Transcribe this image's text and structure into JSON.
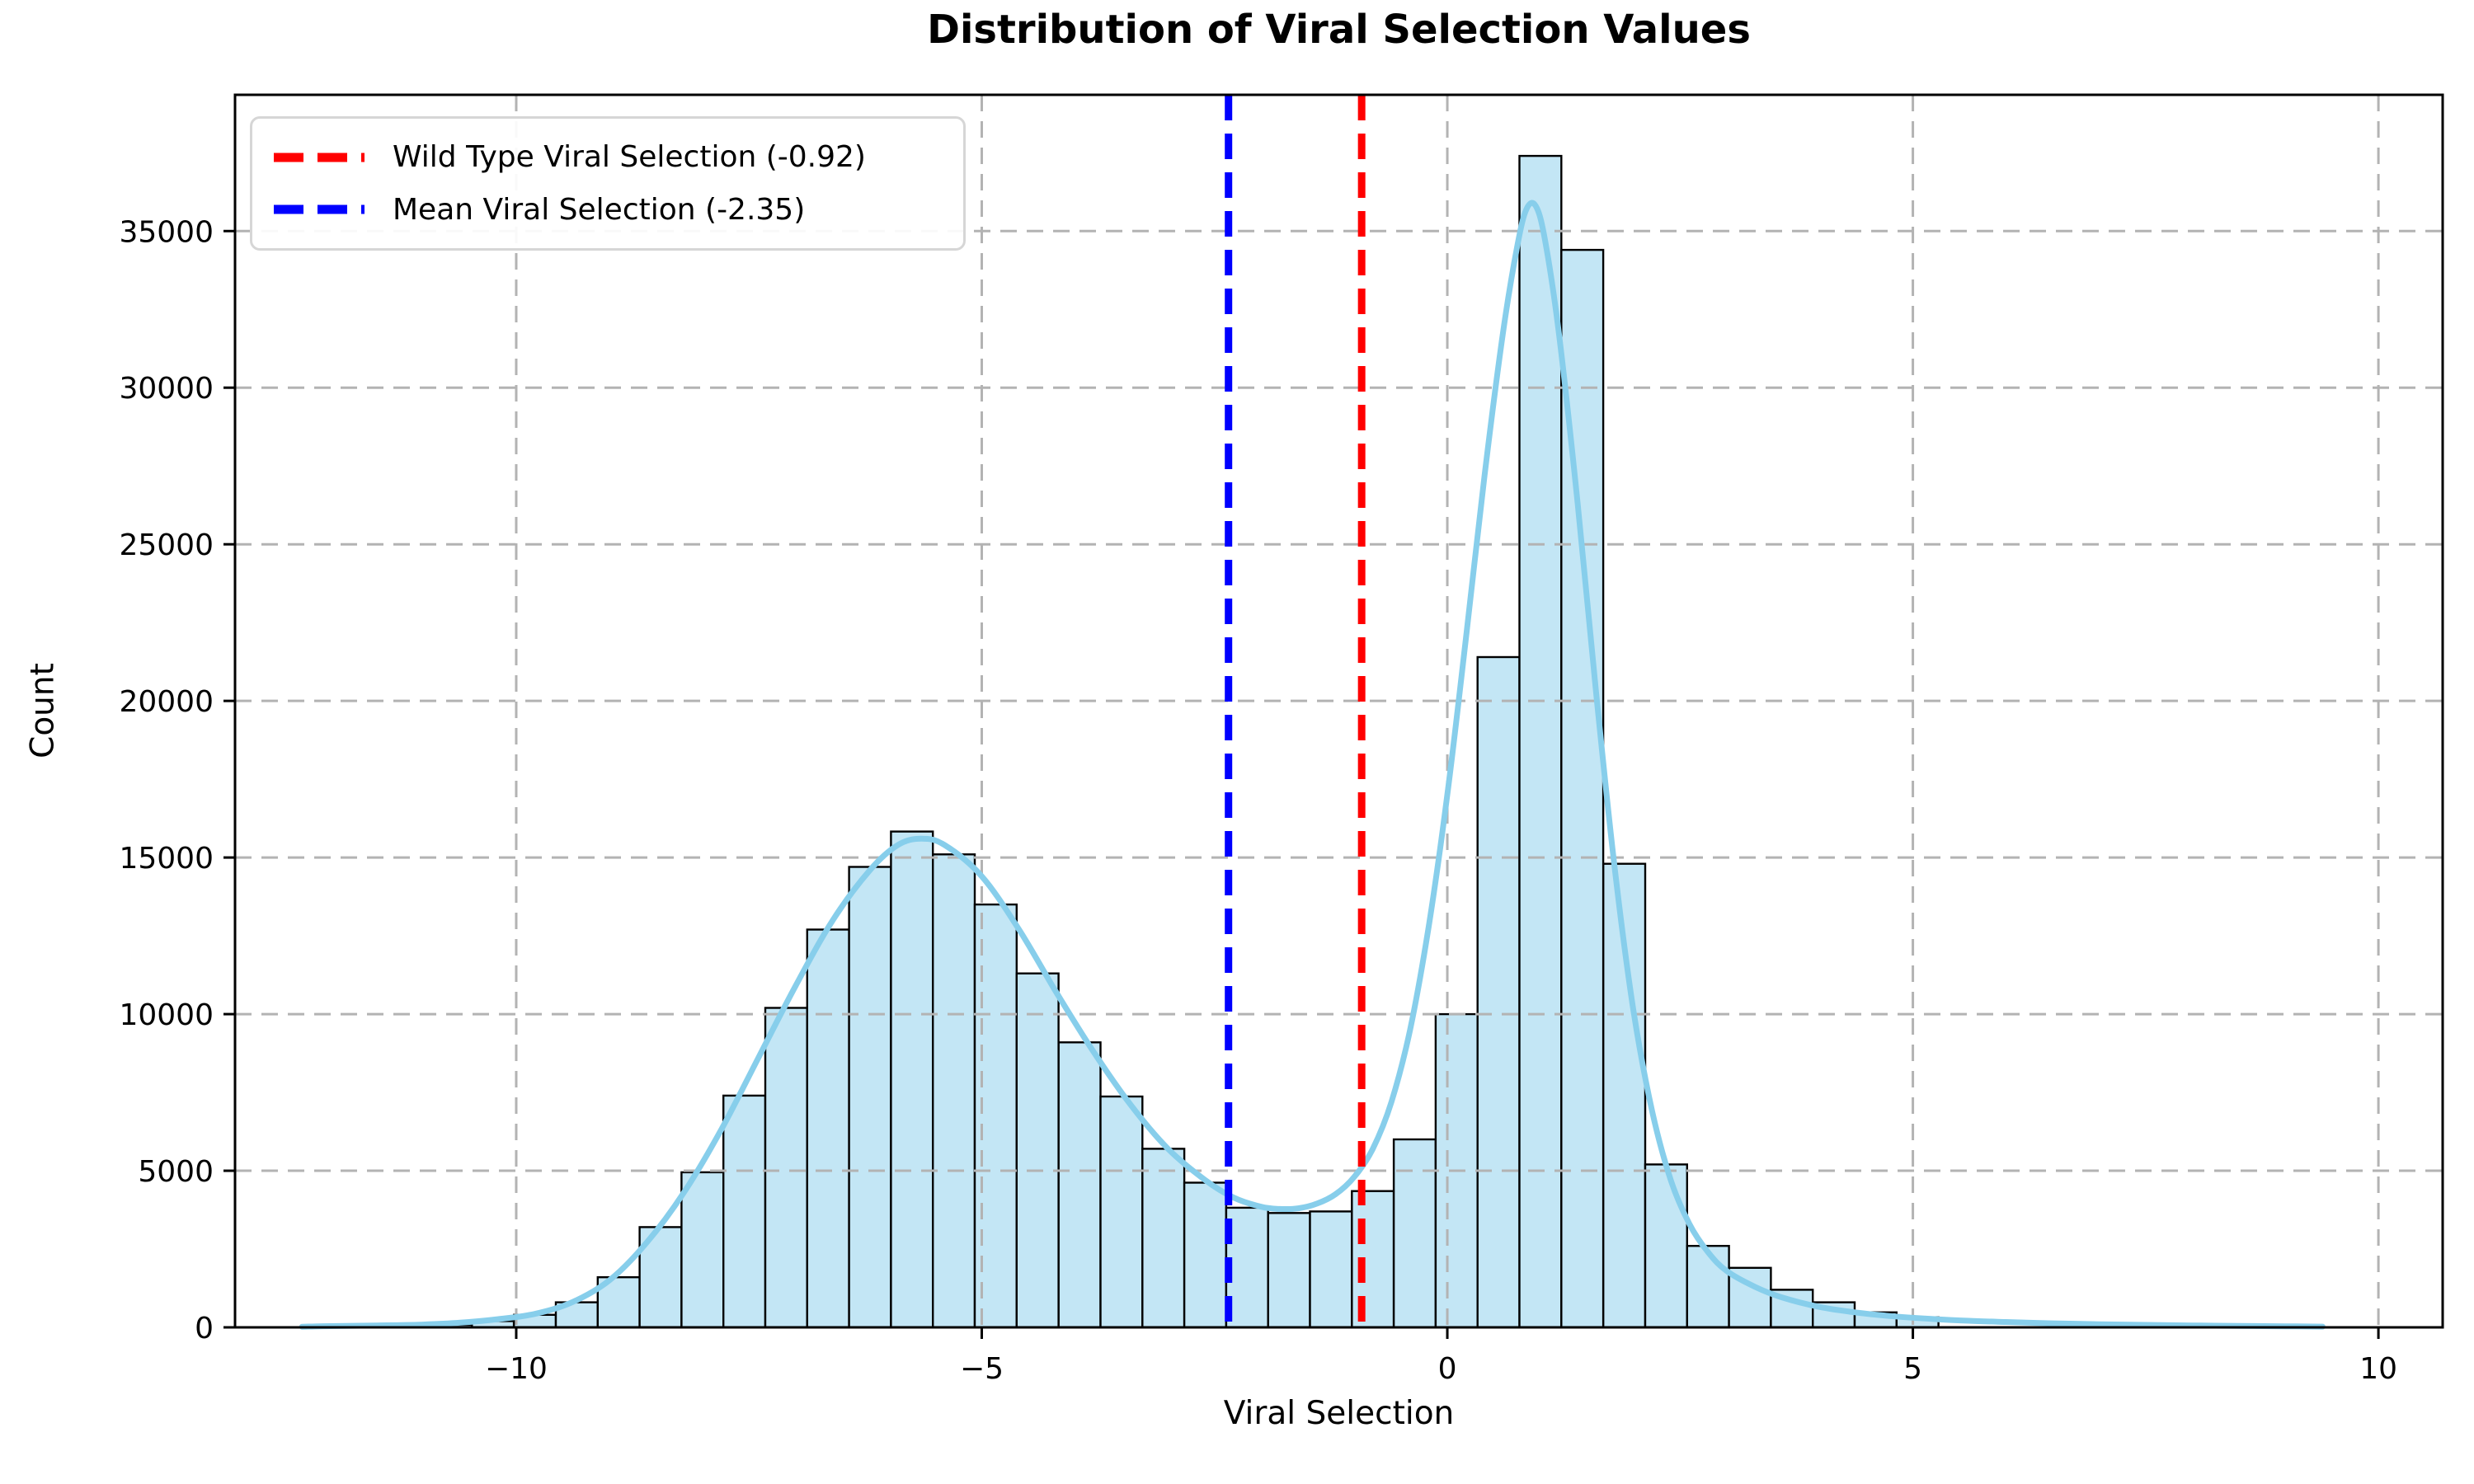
{
  "title": "Distribution of Viral Selection Values",
  "legend": {
    "items": [
      {
        "name": "wild-type",
        "label": "Wild Type Viral Selection (-0.92)",
        "color": "#ff0000"
      },
      {
        "name": "mean",
        "label": "Mean Viral Selection (-2.35)",
        "color": "#0000ff"
      }
    ]
  },
  "colors": {
    "bar_fill": "#c3e6f5",
    "bar_edge": "#000000",
    "kde_line": "#87ceeb",
    "grid": "#b3b3b3",
    "wild_type_line": "#ff0000",
    "mean_line": "#0000ff",
    "spine": "#000000",
    "background": "#ffffff"
  },
  "chart_data": {
    "type": "bar",
    "subtype": "histogram_with_kde",
    "title": "Distribution of Viral Selection Values",
    "xlabel": "Viral Selection",
    "ylabel": "Count",
    "xlim": [
      -13.02,
      10.69
    ],
    "ylim": [
      0,
      39350
    ],
    "x_ticks": [
      -10,
      -5,
      0,
      5,
      10
    ],
    "y_ticks": [
      0,
      5000,
      10000,
      15000,
      20000,
      25000,
      30000,
      35000
    ],
    "grid": true,
    "legend_position": "upper left",
    "bin_width": 0.45,
    "bin_centers": [
      -12.05,
      -11.6,
      -11.15,
      -10.7,
      -10.25,
      -9.8,
      -9.35,
      -8.9,
      -8.45,
      -8.0,
      -7.55,
      -7.1,
      -6.65,
      -6.2,
      -5.75,
      -5.3,
      -4.85,
      -4.4,
      -3.95,
      -3.5,
      -3.05,
      -2.6,
      -2.15,
      -1.7,
      -1.25,
      -0.8,
      -0.35,
      0.1,
      0.55,
      1.0,
      1.45,
      1.9,
      2.35,
      2.8,
      3.25,
      3.7,
      4.15,
      4.6,
      5.05
    ],
    "counts": [
      60,
      0,
      0,
      80,
      200,
      400,
      800,
      1600,
      3200,
      4950,
      7400,
      10200,
      12700,
      14700,
      15830,
      15100,
      13500,
      11300,
      9100,
      7370,
      5700,
      4620,
      3820,
      3650,
      3700,
      4350,
      6000,
      10000,
      21400,
      37400,
      34400,
      14800,
      5200,
      2600,
      1900,
      1200,
      800,
      480,
      320
    ],
    "kde": {
      "x": [
        -12.3,
        -12.0,
        -11.5,
        -11.0,
        -10.6,
        -10.2,
        -9.8,
        -9.4,
        -9.0,
        -8.6,
        -8.2,
        -7.8,
        -7.4,
        -7.0,
        -6.6,
        -6.2,
        -5.9,
        -5.65,
        -5.4,
        -5.0,
        -4.6,
        -4.2,
        -3.8,
        -3.4,
        -3.0,
        -2.6,
        -2.3,
        -2.0,
        -1.8,
        -1.6,
        -1.4,
        -1.2,
        -1.0,
        -0.8,
        -0.6,
        -0.4,
        -0.2,
        0.0,
        0.2,
        0.4,
        0.6,
        0.75,
        0.85,
        0.95,
        1.05,
        1.2,
        1.4,
        1.6,
        1.8,
        2.0,
        2.2,
        2.4,
        2.6,
        2.8,
        3.0,
        3.3,
        3.6,
        4.0,
        4.4,
        4.8,
        5.2,
        5.6,
        6.0,
        6.5,
        7.0,
        7.5,
        8.0,
        8.5,
        9.0,
        9.4
      ],
      "y": [
        20,
        40,
        60,
        90,
        150,
        260,
        430,
        800,
        1500,
        2700,
        4300,
        6300,
        8600,
        10900,
        13000,
        14600,
        15400,
        15600,
        15400,
        14400,
        12700,
        10700,
        8800,
        7100,
        5700,
        4700,
        4150,
        3850,
        3780,
        3800,
        3950,
        4250,
        4800,
        5700,
        7200,
        9500,
        12800,
        17000,
        22000,
        27200,
        31800,
        34500,
        35700,
        35800,
        34700,
        31700,
        26300,
        20200,
        14600,
        10100,
        6900,
        4700,
        3300,
        2400,
        1800,
        1300,
        950,
        650,
        470,
        350,
        270,
        210,
        170,
        130,
        100,
        80,
        60,
        45,
        35,
        25
      ]
    },
    "vlines": [
      {
        "name": "wild-type",
        "label": "Wild Type Viral Selection (-0.92)",
        "x": -0.92,
        "color": "#ff0000",
        "style": "dashed"
      },
      {
        "name": "mean",
        "label": "Mean Viral Selection (-2.35)",
        "x": -2.35,
        "color": "#0000ff",
        "style": "dashed"
      }
    ]
  }
}
